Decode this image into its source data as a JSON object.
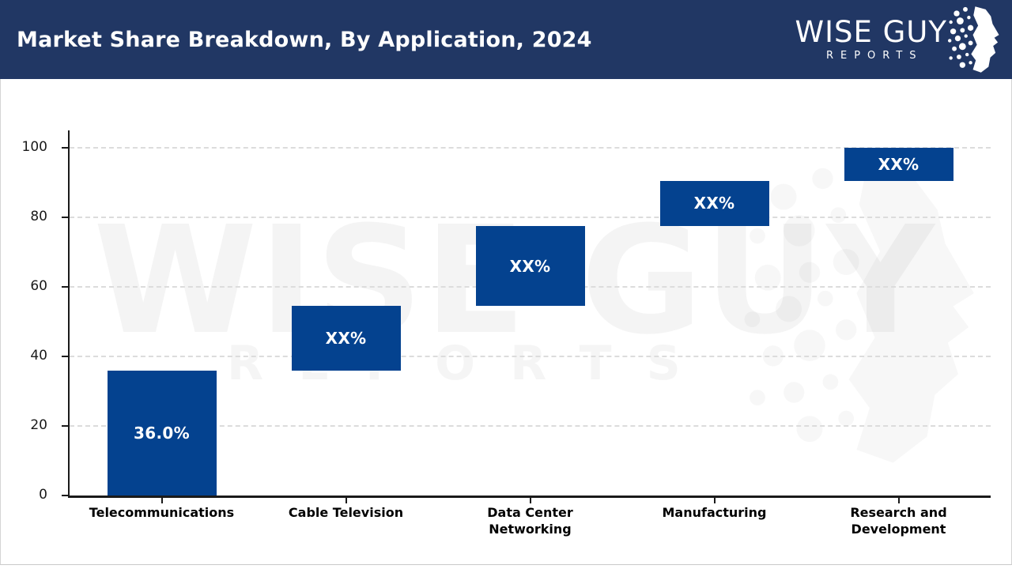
{
  "header": {
    "title": "Market Share Breakdown, By Application, 2024"
  },
  "logo": {
    "line1": "WISE GUY",
    "line2": "REPORTS"
  },
  "watermark": {
    "line1": "WISE GUY",
    "line2": "REPORTS"
  },
  "colors": {
    "header_background": "#213764",
    "bar_blue": "#04428f",
    "axis": "#1a1a1a",
    "gridline": "#dcdcdc",
    "value_label": "#ffffff"
  },
  "chart_data": {
    "type": "bar",
    "subtype": "waterfall",
    "title": "Market Share Breakdown, By Application, 2024",
    "xlabel": "",
    "ylabel": "",
    "ylim": [
      0,
      105
    ],
    "yticks": [
      0,
      20,
      40,
      60,
      80,
      100
    ],
    "grid": true,
    "legend": false,
    "bar_color": "#04428f",
    "categories": [
      "Telecommunications",
      "Cable Television",
      "Data Center Networking",
      "Manufacturing",
      "Research and Development"
    ],
    "values": [
      36.0,
      18.5,
      23.0,
      13.0,
      9.5
    ],
    "segments": [
      {
        "category": "Telecommunications",
        "lines": [
          "Telecommunications"
        ],
        "start": 0,
        "end": 36,
        "value_label": "36.0%"
      },
      {
        "category": "Cable Television",
        "lines": [
          "Cable Television"
        ],
        "start": 36,
        "end": 54.5,
        "value_label": "XX%"
      },
      {
        "category": "Data Center Networking",
        "lines": [
          "Data Center",
          "Networking"
        ],
        "start": 54.5,
        "end": 77.5,
        "value_label": "XX%"
      },
      {
        "category": "Manufacturing",
        "lines": [
          "Manufacturing"
        ],
        "start": 77.5,
        "end": 90.5,
        "value_label": "XX%"
      },
      {
        "category": "Research and Development",
        "lines": [
          "Research and",
          "Development"
        ],
        "start": 90.5,
        "end": 100,
        "value_label": "XX%"
      }
    ]
  }
}
